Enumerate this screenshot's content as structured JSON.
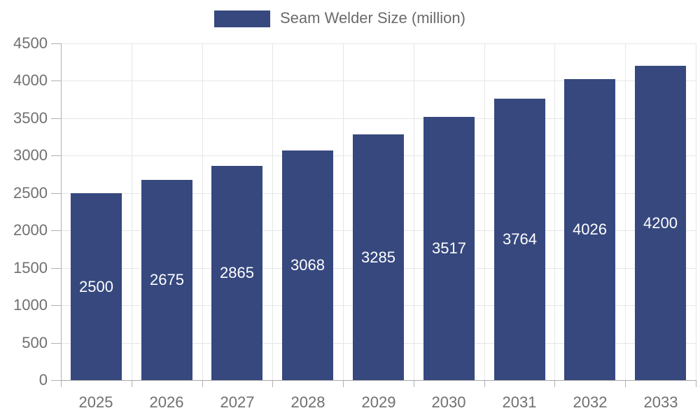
{
  "chart_data": {
    "type": "bar",
    "title": "",
    "legend": {
      "label": "Seam Welder Size (million)",
      "position": "top-center"
    },
    "series_name": "Seam Welder Size (million)",
    "categories": [
      "2025",
      "2026",
      "2027",
      "2028",
      "2029",
      "2030",
      "2031",
      "2032",
      "2033"
    ],
    "values": [
      2500,
      2675,
      2865,
      3068,
      3285,
      3517,
      3764,
      4026,
      4200
    ],
    "bar_labels": [
      "2500",
      "2675",
      "2865",
      "3068",
      "3285",
      "3517",
      "3764",
      "4026",
      "4200"
    ],
    "bar_labels_position": "inside-center",
    "xlabel": "",
    "ylabel": "",
    "ylim": [
      0,
      4500
    ],
    "ytick_step": 500,
    "yticks": [
      "0",
      "500",
      "1000",
      "1500",
      "2000",
      "2500",
      "3000",
      "3500",
      "4000",
      "4500"
    ],
    "grid": "on",
    "colors": {
      "bar": "#36487e",
      "bar_label_text": "#ffffff",
      "axis_text": "#707070",
      "legend_text": "#6b6b6b",
      "gridline": "#e6e6e6",
      "axis_line": "#b1b1b1",
      "x_axis_line": "#a9a9a9",
      "background": "#ffffff"
    }
  }
}
